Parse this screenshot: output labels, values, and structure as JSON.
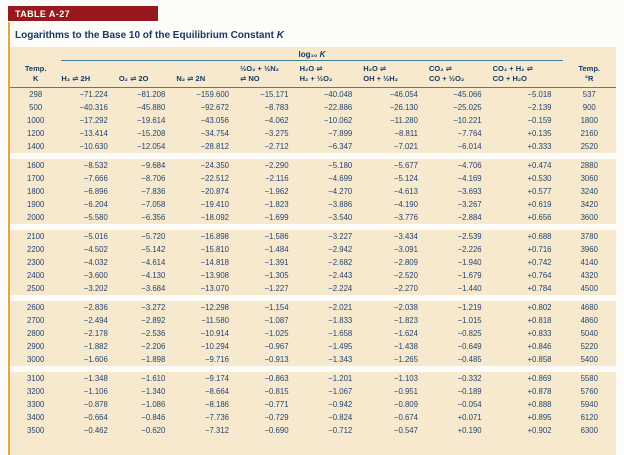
{
  "tab_label": "TABLE A-27",
  "title": {
    "prefix": "Logarithms to the Base 10 of the Equilibrium Constant ",
    "k": "K"
  },
  "colors": {
    "header_red": "#97191D",
    "accent_orange": "#E7A33C",
    "table_cream": "#F6E9CD",
    "text_navy": "#173A66",
    "rule_teal": "#44809A"
  },
  "table": {
    "log_header": {
      "prefix": "log₁₀ ",
      "k": "K"
    },
    "columns": [
      {
        "id": "temp-k",
        "lines": [
          "Temp.",
          "K"
        ]
      },
      {
        "id": "h2-2h",
        "lines": [
          "H₂ ⇌ 2H"
        ]
      },
      {
        "id": "o2-2o",
        "lines": [
          "O₂ ⇌ 2O"
        ]
      },
      {
        "id": "n2-2n",
        "lines": [
          "N₂ ⇌ 2N"
        ]
      },
      {
        "id": "no",
        "lines": [
          "½O₂ + ½N₂",
          "⇌ NO"
        ]
      },
      {
        "id": "h2o-h2-o2",
        "lines": [
          "H₂O ⇌",
          "H₂ + ½O₂"
        ]
      },
      {
        "id": "h2o-oh-h2",
        "lines": [
          "H₂O ⇌",
          "OH + ½H₂"
        ]
      },
      {
        "id": "co2-co-o2",
        "lines": [
          "CO₂ ⇌",
          "CO + ½O₂"
        ]
      },
      {
        "id": "co2-h2-co-h2o",
        "lines": [
          "CO₂ + H₂ ⇌",
          "CO + H₂O"
        ]
      },
      {
        "id": "temp-r",
        "lines": [
          "Temp.",
          "°R"
        ]
      }
    ],
    "row_groups": [
      [
        [
          "298",
          "−71.224",
          "−81.208",
          "−159.600",
          "−15.171",
          "−40.048",
          "−46.054",
          "−45.066",
          "−5.018",
          "537"
        ],
        [
          "500",
          "−40.316",
          "−45.880",
          "−92.672",
          "−8.783",
          "−22.886",
          "−26.130",
          "−25.025",
          "−2.139",
          "900"
        ],
        [
          "1000",
          "−17.292",
          "−19.614",
          "−43.056",
          "−4.062",
          "−10.062",
          "−11.280",
          "−10.221",
          "−0.159",
          "1800"
        ],
        [
          "1200",
          "−13.414",
          "−15.208",
          "−34.754",
          "−3.275",
          "−7.899",
          "−8.811",
          "−7.764",
          "+0.135",
          "2160"
        ],
        [
          "1400",
          "−10.630",
          "−12.054",
          "−28.812",
          "−2.712",
          "−6.347",
          "−7.021",
          "−6.014",
          "+0.333",
          "2520"
        ]
      ],
      [
        [
          "1600",
          "−8.532",
          "−9.684",
          "−24.350",
          "−2.290",
          "−5.180",
          "−5.677",
          "−4.706",
          "+0.474",
          "2880"
        ],
        [
          "1700",
          "−7.666",
          "−8.706",
          "−22.512",
          "−2.116",
          "−4.699",
          "−5.124",
          "−4.169",
          "+0.530",
          "3060"
        ],
        [
          "1800",
          "−6.896",
          "−7.836",
          "−20.874",
          "−1.962",
          "−4.270",
          "−4.613",
          "−3.693",
          "+0.577",
          "3240"
        ],
        [
          "1900",
          "−6.204",
          "−7.058",
          "−19.410",
          "−1.823",
          "−3.886",
          "−4.190",
          "−3.267",
          "+0.619",
          "3420"
        ],
        [
          "2000",
          "−5.580",
          "−6.356",
          "−18.092",
          "−1.699",
          "−3.540",
          "−3.776",
          "−2.884",
          "+0.656",
          "3600"
        ]
      ],
      [
        [
          "2100",
          "−5.016",
          "−5.720",
          "−16.898",
          "−1.586",
          "−3.227",
          "−3.434",
          "−2.539",
          "+0.688",
          "3780"
        ],
        [
          "2200",
          "−4.502",
          "−5.142",
          "−15.810",
          "−1.484",
          "−2.942",
          "−3.091",
          "−2.226",
          "+0.716",
          "3960"
        ],
        [
          "2300",
          "−4.032",
          "−4.614",
          "−14.818",
          "−1.391",
          "−2.682",
          "−2.809",
          "−1.940",
          "+0.742",
          "4140"
        ],
        [
          "2400",
          "−3.600",
          "−4.130",
          "−13.908",
          "−1.305",
          "−2.443",
          "−2.520",
          "−1.679",
          "+0.764",
          "4320"
        ],
        [
          "2500",
          "−3.202",
          "−3.684",
          "−13.070",
          "−1.227",
          "−2.224",
          "−2.270",
          "−1.440",
          "+0.784",
          "4500"
        ]
      ],
      [
        [
          "2600",
          "−2.836",
          "−3.272",
          "−12.298",
          "−1.154",
          "−2.021",
          "−2.038",
          "−1.219",
          "+0.802",
          "4680"
        ],
        [
          "2700",
          "−2.494",
          "−2.892",
          "−11.580",
          "−1.087",
          "−1.833",
          "−1.823",
          "−1.015",
          "+0.818",
          "4860"
        ],
        [
          "2800",
          "−2.178",
          "−2.536",
          "−10.914",
          "−1.025",
          "−1.658",
          "−1.624",
          "−0.825",
          "+0.833",
          "5040"
        ],
        [
          "2900",
          "−1.882",
          "−2.206",
          "−10.294",
          "−0.967",
          "−1.495",
          "−1.438",
          "−0.649",
          "+0.846",
          "5220"
        ],
        [
          "3000",
          "−1.606",
          "−1.898",
          "−9.716",
          "−0.913",
          "−1.343",
          "−1.265",
          "−0.485",
          "+0.858",
          "5400"
        ]
      ],
      [
        [
          "3100",
          "−1.348",
          "−1.610",
          "−9.174",
          "−0.863",
          "−1.201",
          "−1.103",
          "−0.332",
          "+0.869",
          "5580"
        ],
        [
          "3200",
          "−1.106",
          "−1.340",
          "−8.664",
          "−0.815",
          "−1.067",
          "−0.951",
          "−0.189",
          "+0.878",
          "5760"
        ],
        [
          "3300",
          "−0.878",
          "−1.086",
          "−8.186",
          "−0.771",
          "−0.942",
          "−0.809",
          "−0.054",
          "+0.888",
          "5940"
        ],
        [
          "3400",
          "−0.664",
          "−0.846",
          "−7.736",
          "−0.729",
          "−0.824",
          "−0.674",
          "+0.071",
          "+0.895",
          "6120"
        ],
        [
          "3500",
          "−0.462",
          "−0.620",
          "−7.312",
          "−0.690",
          "−0.712",
          "−0.547",
          "+0.190",
          "+0.902",
          "6300"
        ]
      ]
    ]
  }
}
